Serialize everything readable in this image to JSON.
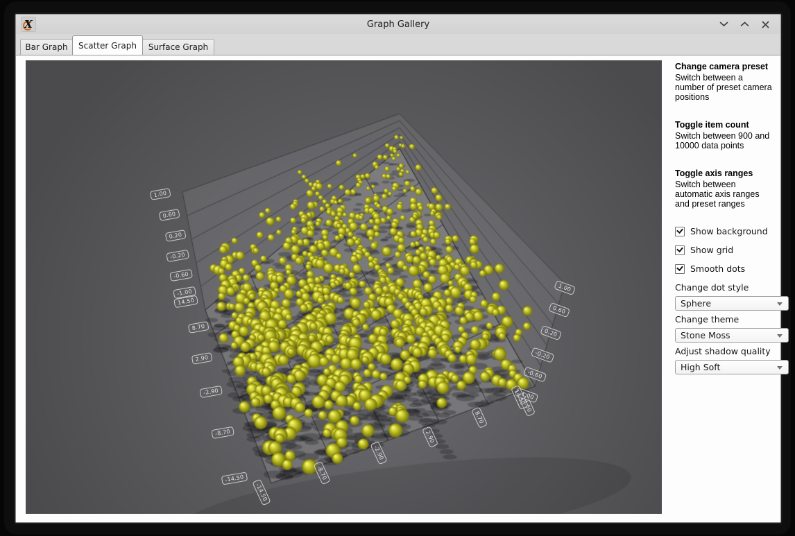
{
  "window": {
    "title": "Graph Gallery",
    "app_icon": "x11-logo",
    "controls": {
      "minimize": "chevron-down",
      "maximize": "chevron-up",
      "close": "x"
    }
  },
  "tabs": [
    {
      "label": "Bar Graph",
      "active": false
    },
    {
      "label": "Scatter Graph",
      "active": true
    },
    {
      "label": "Surface Graph",
      "active": false
    }
  ],
  "panel": {
    "command_buttons": [
      {
        "title": "Change camera preset",
        "description": "Switch between a number of preset camera positions"
      },
      {
        "title": "Toggle item count",
        "description": "Switch between 900 and 10000 data points"
      },
      {
        "title": "Toggle axis ranges",
        "description": "Switch between automatic axis ranges and preset ranges"
      }
    ],
    "checkboxes": [
      {
        "label": "Show background",
        "checked": true
      },
      {
        "label": "Show grid",
        "checked": true
      },
      {
        "label": "Smooth dots",
        "checked": true
      }
    ],
    "selects": [
      {
        "label": "Change dot style",
        "value": "Sphere"
      },
      {
        "label": "Change theme",
        "value": "Stone Moss"
      },
      {
        "label": "Adjust shadow quality",
        "value": "High Soft"
      }
    ]
  },
  "chart_data": {
    "type": "scatter",
    "projection": "3d",
    "point_count": 900,
    "dot_style": "Sphere",
    "theme": "Stone Moss",
    "dot_color": "#b9b925",
    "background_shown": true,
    "grid_shown": true,
    "axes": {
      "y": {
        "range": [
          -1.0,
          1.0
        ],
        "ticks": [
          "1.00",
          "0.60",
          "0.20",
          "-0.20",
          "-0.60",
          "-1.00"
        ]
      },
      "x": {
        "range": [
          -14.5,
          14.5
        ],
        "ticks": [
          "-14.50",
          "-8.70",
          "-2.90",
          "2.90",
          "8.70",
          "14.50"
        ]
      },
      "z": {
        "range": [
          -14.5,
          14.5
        ],
        "ticks": [
          "14.50",
          "8.70",
          "2.90",
          "-2.90",
          "-8.70",
          "-14.50"
        ]
      }
    },
    "extra_features": {
      "diagonal_line_of_points": true
    }
  }
}
